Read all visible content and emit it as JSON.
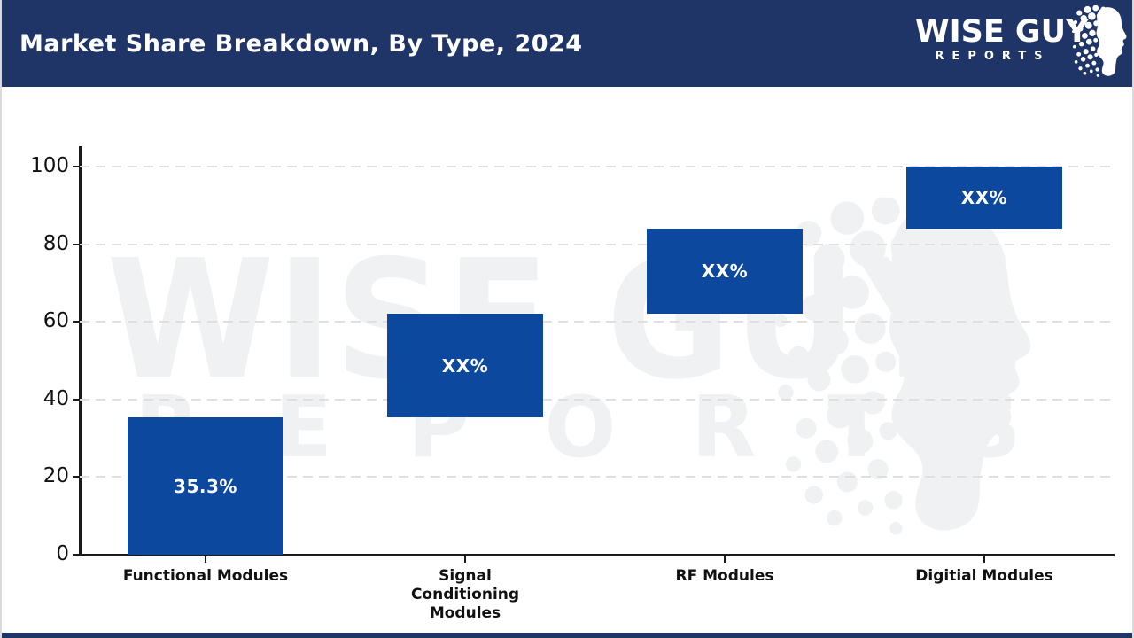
{
  "header": {
    "title": "Market Share Breakdown, By Type, 2024",
    "logo": {
      "primary": "WISE GUY",
      "secondary": "REPORTS"
    }
  },
  "watermark": {
    "primary": "WISE GUY",
    "secondary": "REPORTS"
  },
  "colors": {
    "header_bg": "#1f3567",
    "bar": "#0b489e",
    "bar_label": "#ffffff",
    "axis": "#1a1a1a",
    "gridline": "#dfdfdf",
    "watermark": "#f0f1f3",
    "page_border": "#d9d9d9"
  },
  "chart_data": {
    "type": "bar",
    "subtype": "waterfall",
    "title": "Market Share Breakdown, By Type, 2024",
    "categories": [
      "Functional Modules",
      "Signal Conditioning Modules",
      "RF Modules",
      "Digitial Modules"
    ],
    "categories_display": [
      [
        "Functional Modules"
      ],
      [
        "Signal",
        "Conditioning",
        "Modules"
      ],
      [
        "RF Modules"
      ],
      [
        "Digitial Modules"
      ]
    ],
    "series": [
      {
        "name": "Market Share (%)",
        "segments": [
          {
            "category": "Functional Modules",
            "start": 0,
            "end": 35.3,
            "label": "35.3%"
          },
          {
            "category": "Signal Conditioning Modules",
            "start": 35.3,
            "end": 62,
            "label": "XX%"
          },
          {
            "category": "RF Modules",
            "start": 62,
            "end": 84,
            "label": "XX%"
          },
          {
            "category": "Digitial Modules",
            "start": 84,
            "end": 100,
            "label": "XX%"
          }
        ]
      }
    ],
    "ylim": [
      0,
      100
    ],
    "yticks": [
      0,
      20,
      40,
      60,
      80,
      100
    ],
    "xlabel": "",
    "ylabel": "",
    "grid": "horizontal-dashed",
    "legend": "none",
    "bar_color": "#0b489e",
    "bar_label_color": "#ffffff"
  }
}
